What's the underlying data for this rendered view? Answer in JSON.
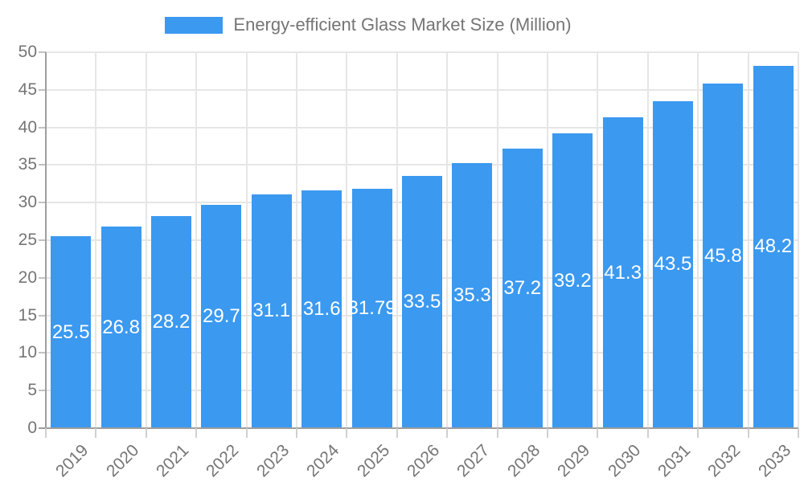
{
  "legend": {
    "label": "Energy-efficient Glass Market Size (Million)",
    "swatch_color": "#3B99F0"
  },
  "chart_data": {
    "type": "bar",
    "title": "Energy-efficient Glass Market Size (Million)",
    "categories": [
      "2019",
      "2020",
      "2021",
      "2022",
      "2023",
      "2024",
      "2025",
      "2026",
      "2027",
      "2028",
      "2029",
      "2030",
      "2031",
      "2032",
      "2033"
    ],
    "values": [
      25.5,
      26.8,
      28.2,
      29.7,
      31.1,
      31.6,
      31.79,
      33.5,
      35.3,
      37.2,
      39.2,
      41.3,
      43.5,
      45.8,
      48.2
    ],
    "value_labels": [
      "25.5",
      "26.8",
      "28.2",
      "29.7",
      "31.1",
      "31.6",
      "31.79",
      "33.5",
      "35.3",
      "37.2",
      "39.2",
      "41.3",
      "43.5",
      "45.8",
      "48.2"
    ],
    "xlabel": "",
    "ylabel": "",
    "ylim": [
      0,
      50
    ],
    "ytick_step": 5,
    "yticks": [
      0,
      5,
      10,
      15,
      20,
      25,
      30,
      35,
      40,
      45,
      50
    ],
    "grid": true,
    "legend_position": "top",
    "x_tick_rotation": -45,
    "bar_color": "#3B99F0",
    "value_label_color": "#FFFFFF",
    "axis_text_color": "#757575"
  }
}
